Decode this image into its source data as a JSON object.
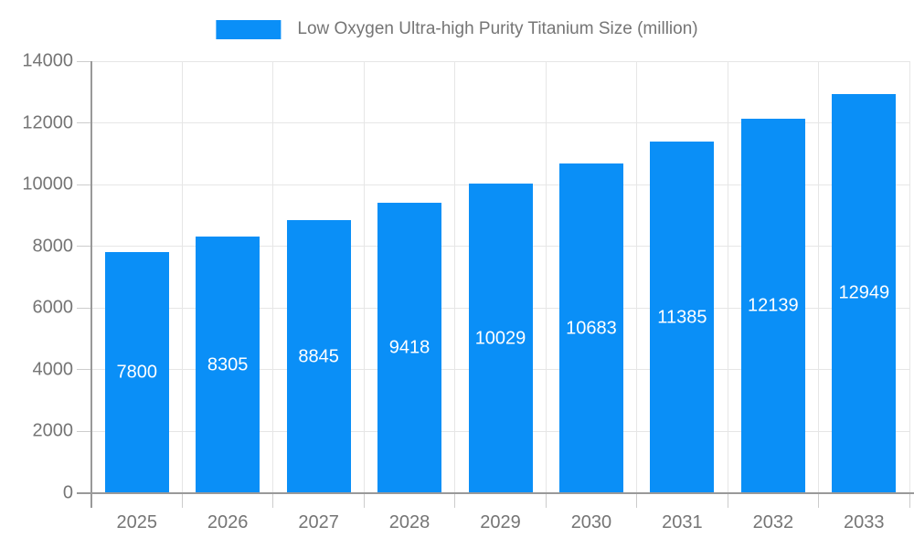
{
  "chart_data": {
    "type": "bar",
    "title": "Low Oxygen Ultra-high Purity Titanium Size (million)",
    "categories": [
      "2025",
      "2026",
      "2027",
      "2028",
      "2029",
      "2030",
      "2031",
      "2032",
      "2033"
    ],
    "values": [
      7800,
      8305,
      8845,
      9418,
      10029,
      10683,
      11385,
      12139,
      12949
    ],
    "series": [
      {
        "name": "Low Oxygen Ultra-high Purity Titanium Size (million)",
        "values": [
          7800,
          8305,
          8845,
          9418,
          10029,
          10683,
          11385,
          12139,
          12949
        ]
      }
    ],
    "xlabel": "",
    "ylabel": "",
    "ylim": [
      0,
      14000
    ],
    "y_ticks": [
      0,
      2000,
      4000,
      6000,
      8000,
      10000,
      12000,
      14000
    ],
    "grid": "both",
    "legend_position": "top-center",
    "bar_label_style": "white values centered inside bars"
  },
  "colors": {
    "bar": "#0a8ff7",
    "grid": "#e6e6e6",
    "tick": "#cccccc",
    "axis": "#999999",
    "axis_label_text": "#757575",
    "legend_text": "#757575",
    "bar_label_text": "#ffffff",
    "background": "#ffffff"
  }
}
